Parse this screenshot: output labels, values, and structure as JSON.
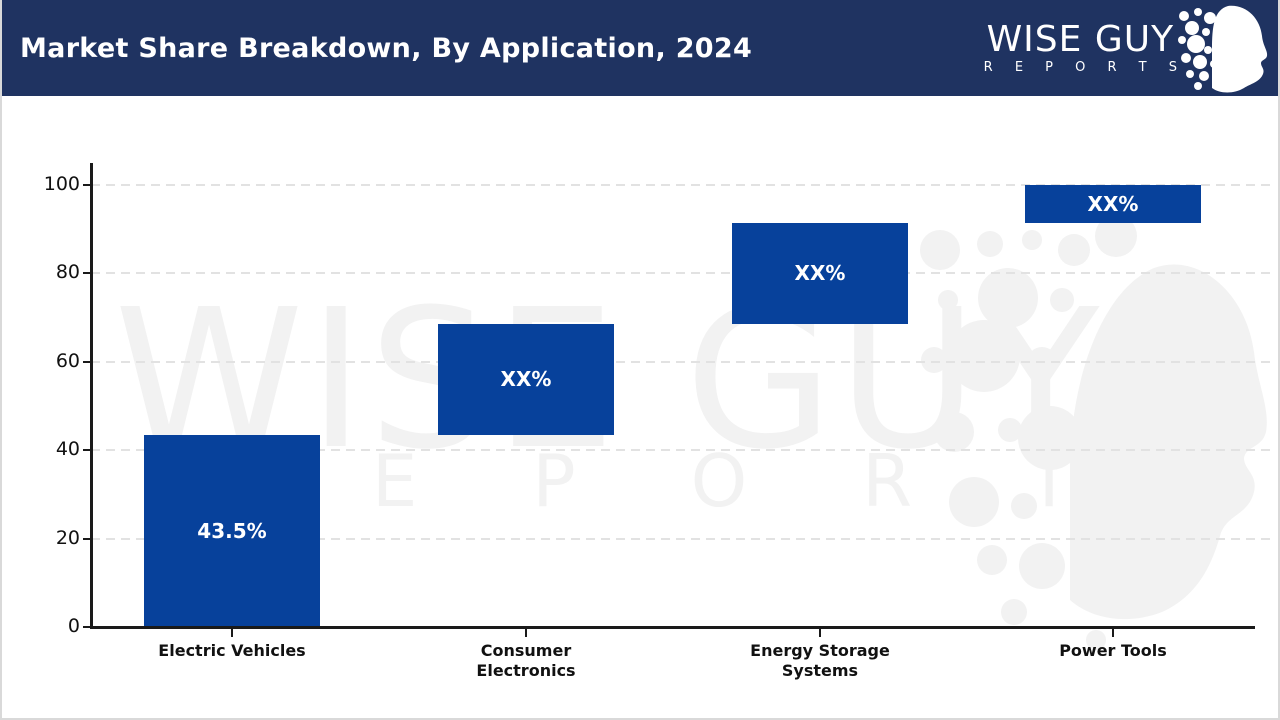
{
  "header": {
    "title": "Market Share Breakdown, By Application, 2024",
    "logo_line1": "WISE GUY",
    "logo_line2": "R E P O R T S"
  },
  "watermark": {
    "line1": "WISE GUY",
    "line2": "R E P O R T S"
  },
  "colors": {
    "header_bg": "#1f3361",
    "bar": "#07419b",
    "grid": "#e2e2e2",
    "axis": "#1a1a1a",
    "watermark": "#f2f2f2"
  },
  "chart_data": {
    "type": "bar",
    "subtype": "waterfall",
    "title": "Market Share Breakdown, By Application, 2024",
    "categories": [
      "Electric Vehicles",
      "Consumer Electronics",
      "Energy Storage Systems",
      "Power Tools"
    ],
    "category_lines": [
      [
        "Electric Vehicles"
      ],
      [
        "Consumer",
        "Electronics"
      ],
      [
        "Energy Storage",
        "Systems"
      ],
      [
        "Power Tools"
      ]
    ],
    "segments": [
      {
        "category": "Electric Vehicles",
        "start": 0,
        "end": 43.5,
        "label": "43.5%"
      },
      {
        "category": "Consumer Electronics",
        "start": 43.5,
        "end": 68.5,
        "label": "XX%"
      },
      {
        "category": "Energy Storage Systems",
        "start": 68.5,
        "end": 91.5,
        "label": "XX%"
      },
      {
        "category": "Power Tools",
        "start": 91.5,
        "end": 100,
        "label": "XX%"
      }
    ],
    "yticks": [
      0,
      20,
      40,
      60,
      80,
      100
    ],
    "ylim": [
      0,
      105
    ],
    "xlabel": "",
    "ylabel": "",
    "grid": true,
    "legend": false
  }
}
